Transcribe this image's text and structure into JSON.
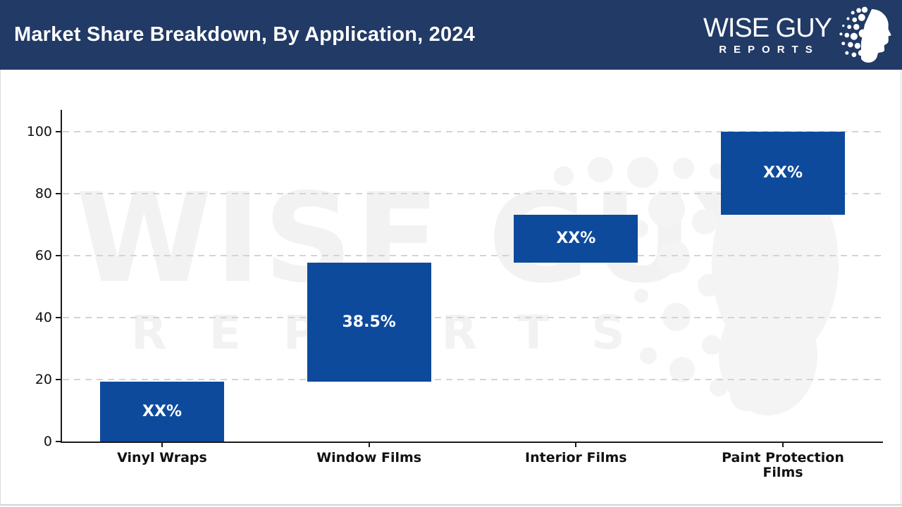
{
  "header": {
    "title": "Market Share Breakdown, By Application, 2024",
    "logo": {
      "line1": "WISE GUY",
      "line2": "REPORTS"
    }
  },
  "watermark": {
    "line1": "WISE GUY",
    "line2": "REPORTS"
  },
  "colors": {
    "header_bg": "#213a66",
    "bar": "#0e4a9c",
    "grid": "#d4d4d4",
    "axis": "#1a1a1a",
    "watermark": "#f2f2f2"
  },
  "chart_data": {
    "type": "bar",
    "variant": "waterfall",
    "title": "Market Share Breakdown, By Application, 2024",
    "categories": [
      "Vinyl Wraps",
      "Window Films",
      "Interior Films",
      "Paint Protection Films"
    ],
    "segments": [
      {
        "category": "Vinyl Wraps",
        "start": 0,
        "end": 19.3,
        "label": "XX%"
      },
      {
        "category": "Window Films",
        "start": 19.3,
        "end": 57.8,
        "label": "38.5%"
      },
      {
        "category": "Interior Films",
        "start": 57.8,
        "end": 73.2,
        "label": "XX%"
      },
      {
        "category": "Paint Protection Films",
        "start": 73.2,
        "end": 100,
        "label": "XX%"
      }
    ],
    "yticks": [
      0,
      20,
      40,
      60,
      80,
      100
    ],
    "ylim": [
      0,
      107
    ],
    "xlabel": "",
    "ylabel": "",
    "grid": "dashed-horizontal",
    "legend": "none",
    "bar_color": "#0e4a9c"
  }
}
